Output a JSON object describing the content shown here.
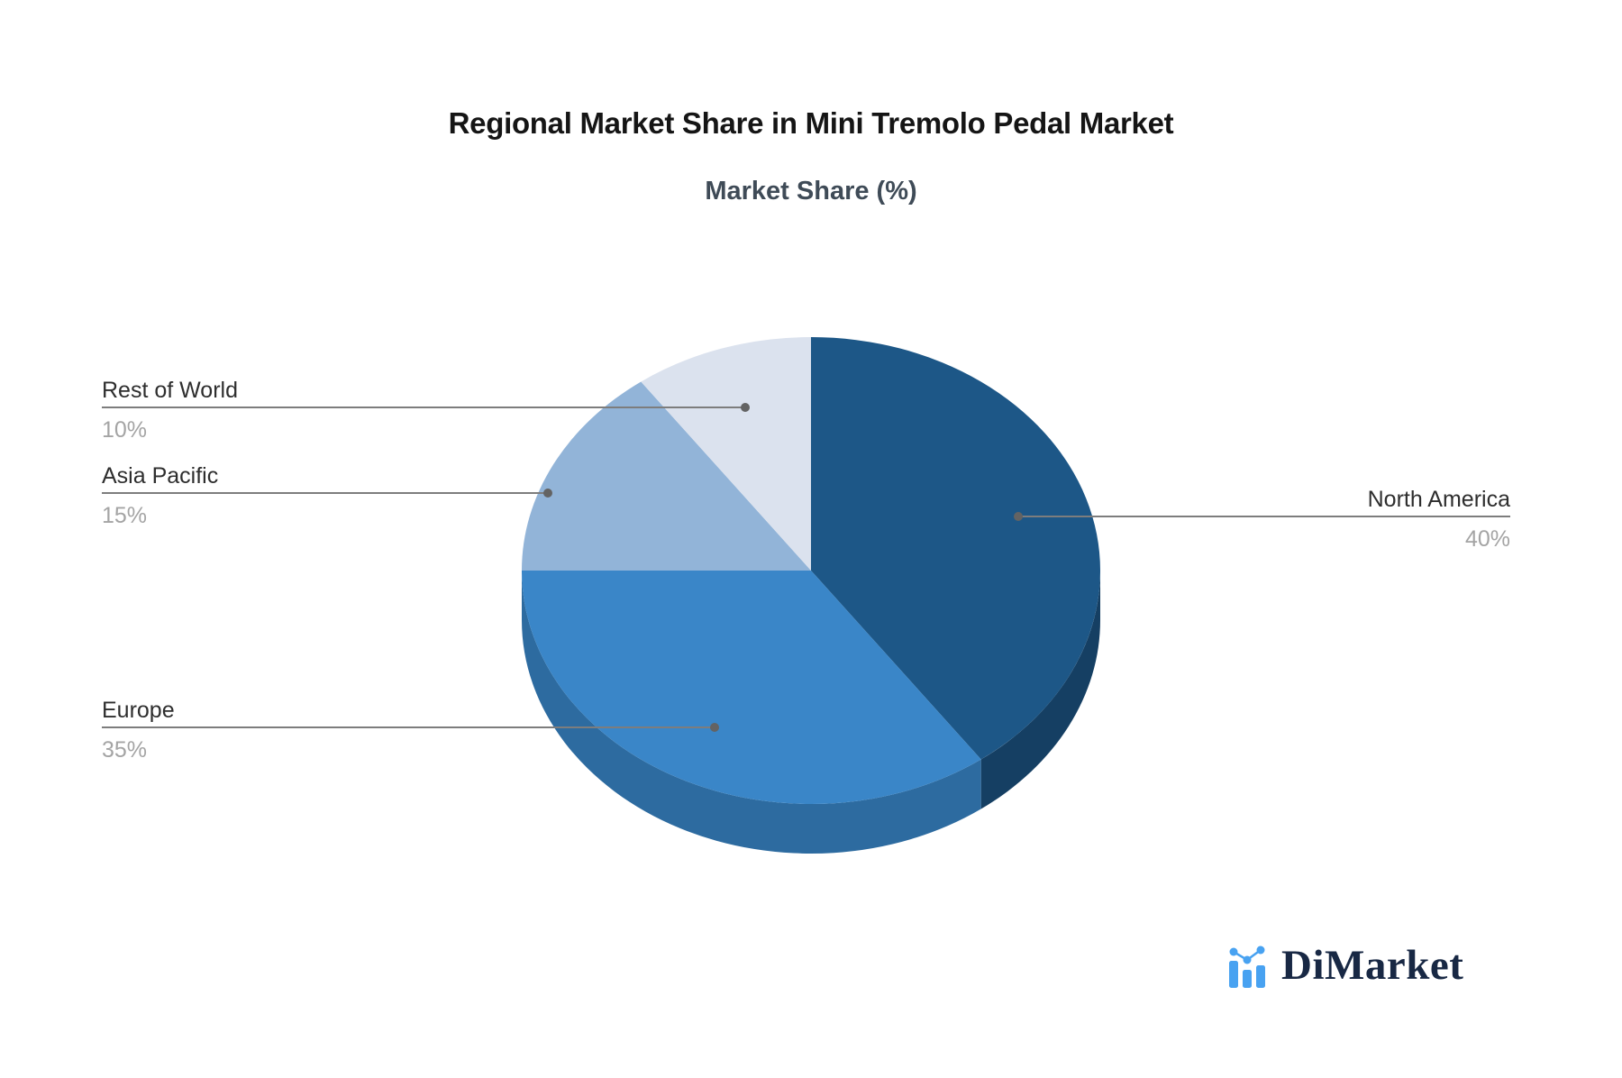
{
  "chart_data": {
    "type": "pie",
    "title": "Regional Market Share in Mini Tremolo Pedal Market",
    "subtitle": "Market Share (%)",
    "unit": "%",
    "direction": "clockwise",
    "start_angle_deg": 0,
    "effect": "3d-depth",
    "slices": [
      {
        "label": "North America",
        "value": 40,
        "pct_label": "40%",
        "color": "#1d5787",
        "side_color": "#153f63"
      },
      {
        "label": "Europe",
        "value": 35,
        "pct_label": "35%",
        "color": "#3a86c8",
        "side_color": "#2d6ba0"
      },
      {
        "label": "Asia Pacific",
        "value": 15,
        "pct_label": "15%",
        "color": "#92b4d8",
        "side_color": "#7ea3c9"
      },
      {
        "label": "Rest of World",
        "value": 10,
        "pct_label": "10%",
        "color": "#dbe2ee",
        "side_color": "#c3cede"
      }
    ],
    "connector_color": "#7d7d7d",
    "connector_dot_color": "#636363",
    "label_color": "#2e2e2e",
    "percent_color": "#a4a4a4"
  },
  "branding": {
    "logo_text": "DiMarket",
    "logo_icon": "bar-chart-icon",
    "logo_icon_color": "#48a2f1",
    "logo_text_color": "#182844"
  }
}
